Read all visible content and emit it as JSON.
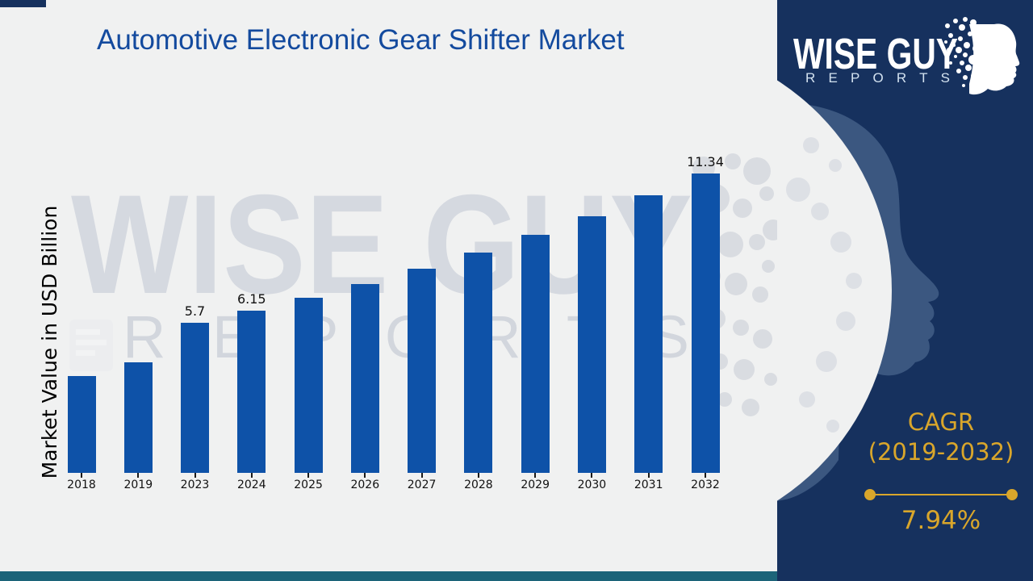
{
  "page": {
    "background_color": "#f0f1f1",
    "panel_color": "#16315e",
    "footer_strip_color": "#1c6479"
  },
  "title": {
    "text": "Automotive Electronic Gear Shifter Market",
    "color": "#134a9e"
  },
  "brand": {
    "name": "WISE GUY",
    "suffix": "REPORTS"
  },
  "watermark": {
    "line1": "WISE GUY",
    "line2": "REPORTS"
  },
  "chart_data": {
    "type": "bar",
    "title": "Automotive Electronic Gear Shifter Market",
    "categories": [
      "2018",
      "2019",
      "2023",
      "2024",
      "2025",
      "2026",
      "2027",
      "2028",
      "2029",
      "2030",
      "2031",
      "2032"
    ],
    "values": [
      3.67,
      4.2,
      5.7,
      6.15,
      6.64,
      7.17,
      7.74,
      8.35,
      9.02,
      9.73,
      10.51,
      11.34
    ],
    "bar_labels": [
      "",
      "",
      "5.7",
      "6.15",
      "",
      "",
      "",
      "",
      "",
      "",
      "",
      "11.34"
    ],
    "ylabel": "Market Value in USD Billion",
    "xlabel": "",
    "ylim": [
      0,
      12
    ],
    "grid": false,
    "legend": null,
    "bar_color": "#0e52a8"
  },
  "cagr": {
    "heading": "CAGR",
    "range": "(2019-2032)",
    "value": "7.94%",
    "color": "#d9a62b"
  },
  "icons": {
    "brand_face": "face-profile-icon",
    "brand_dots": "dots-pattern",
    "watermark_chart": "mini-chart-icon"
  }
}
